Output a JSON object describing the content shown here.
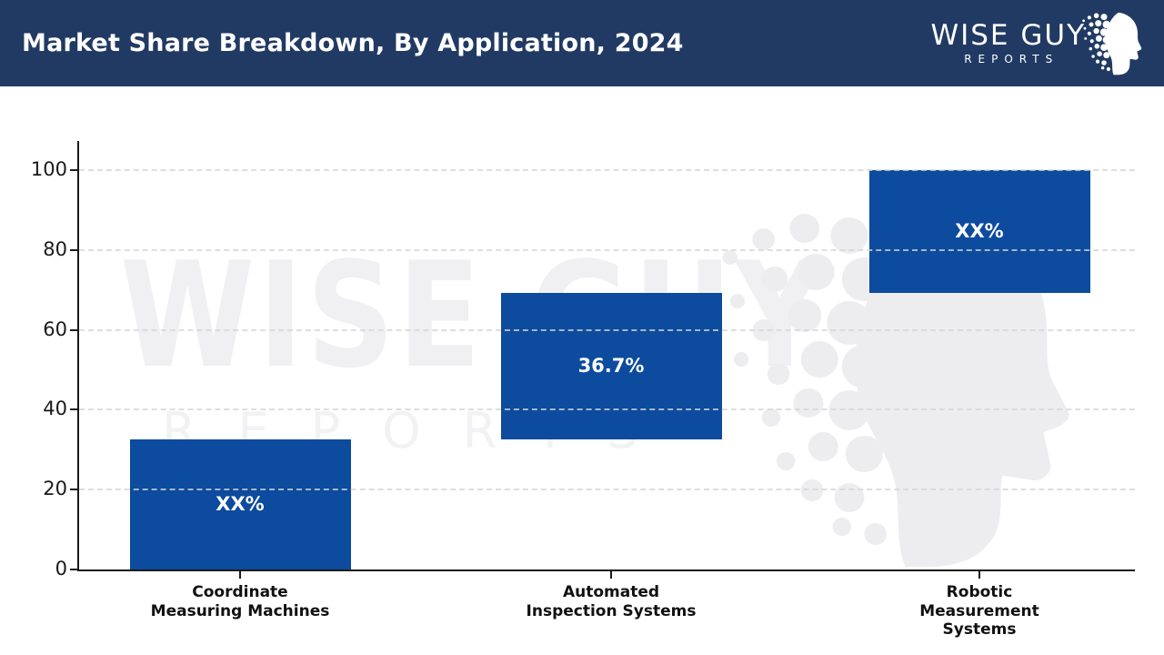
{
  "header": {
    "title": "Market Share Breakdown, By Application, 2024",
    "bg_color": "#213a64",
    "logo": {
      "line1": "WISE GUY",
      "line2": "REPORTS"
    }
  },
  "watermark": {
    "line1": "WISE GUY",
    "line2": "REPORTS"
  },
  "chart_data": {
    "type": "bar",
    "subtype": "floating_stacked_percent",
    "title": "Market Share Breakdown, By Application, 2024",
    "categories": [
      "Coordinate\nMeasuring Machines",
      "Automated\nInspection Systems",
      "Robotic\nMeasurement\nSystems"
    ],
    "segments": [
      {
        "category": "Coordinate Measuring Machines",
        "start": 0,
        "end": 32.6,
        "value": 32.6,
        "label": "XX%"
      },
      {
        "category": "Automated Inspection Systems",
        "start": 32.6,
        "end": 69.3,
        "value": 36.7,
        "label": "36.7%"
      },
      {
        "category": "Robotic Measurement Systems",
        "start": 69.3,
        "end": 100,
        "value": 30.7,
        "label": "XX%"
      }
    ],
    "ylim": [
      0,
      100
    ],
    "yticks": [
      0,
      20,
      40,
      60,
      80,
      100
    ],
    "grid": true,
    "grid_style": "dashed",
    "bar_color": "#0c4b9e",
    "label_color": "#ffffff",
    "axis_color": "#1a1a1a",
    "legend": "none"
  }
}
